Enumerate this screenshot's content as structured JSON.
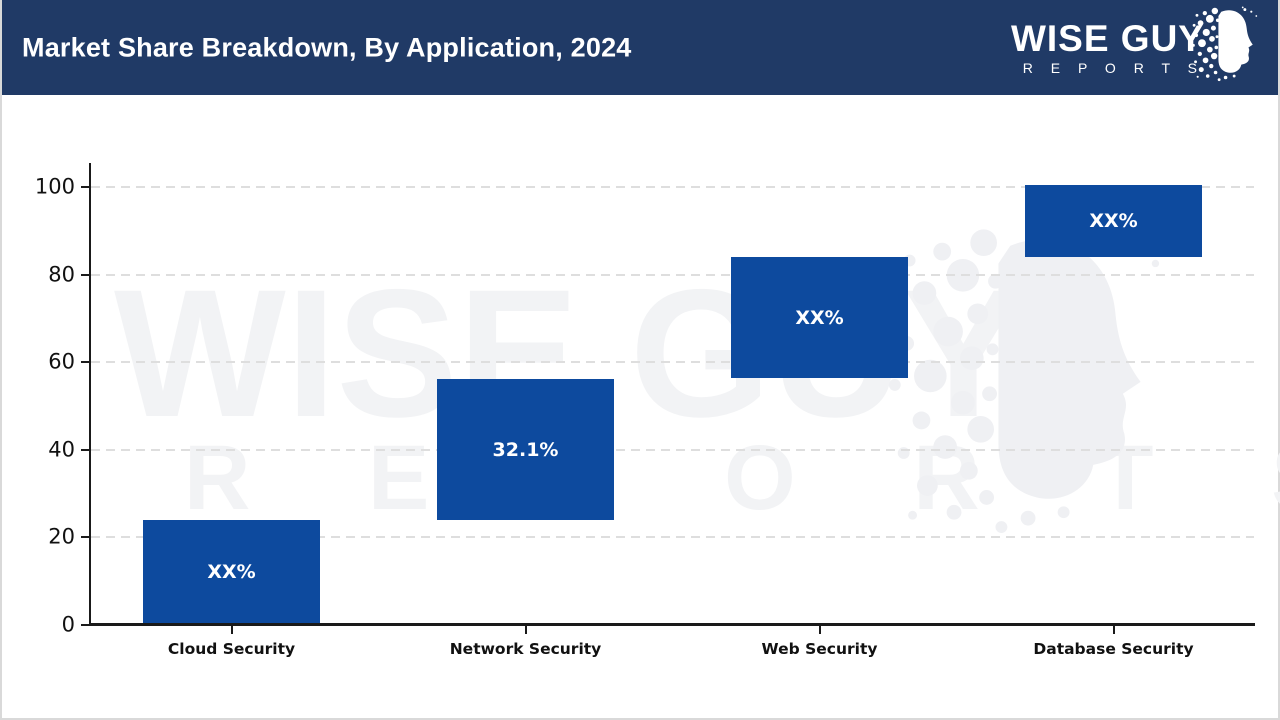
{
  "header": {
    "title": "Market Share Breakdown, By Application, 2024",
    "logo_line1": "WISE GUY",
    "logo_line2": "R E P O R T S"
  },
  "watermark": {
    "line1": "WISE GUY",
    "line2": "R E P O R T S"
  },
  "colors": {
    "header_bg": "#203a66",
    "bar_blue": "#0d4a9e",
    "axis": "#1a1a1a",
    "gridline": "#dedede",
    "watermark": "#f2f3f5",
    "label_text": "#ffffff",
    "tick_text": "#111111"
  },
  "chart_data": {
    "type": "bar",
    "subtype": "waterfall-floating-bars",
    "title": "Market Share Breakdown, By Application, 2024",
    "categories": [
      "Cloud Security",
      "Network Security",
      "Web Security",
      "Database Security"
    ],
    "bars": [
      {
        "category": "Cloud Security",
        "start": 0,
        "end": 24.0,
        "label": "XX%"
      },
      {
        "category": "Network Security",
        "start": 24.0,
        "end": 56.1,
        "label": "32.1%"
      },
      {
        "category": "Web Security",
        "start": 56.3,
        "end": 84.1,
        "label": "XX%"
      },
      {
        "category": "Database Security",
        "start": 84.1,
        "end": 100.4,
        "label": "XX%"
      }
    ],
    "yticks": [
      0,
      20,
      40,
      60,
      80,
      100
    ],
    "ylim": [
      0,
      100
    ],
    "xlabel": "",
    "ylabel": "",
    "grid": "horizontal-dashed",
    "legend": "none",
    "bar_color": "#0d4a9e",
    "value_label_position": "center-inside"
  }
}
